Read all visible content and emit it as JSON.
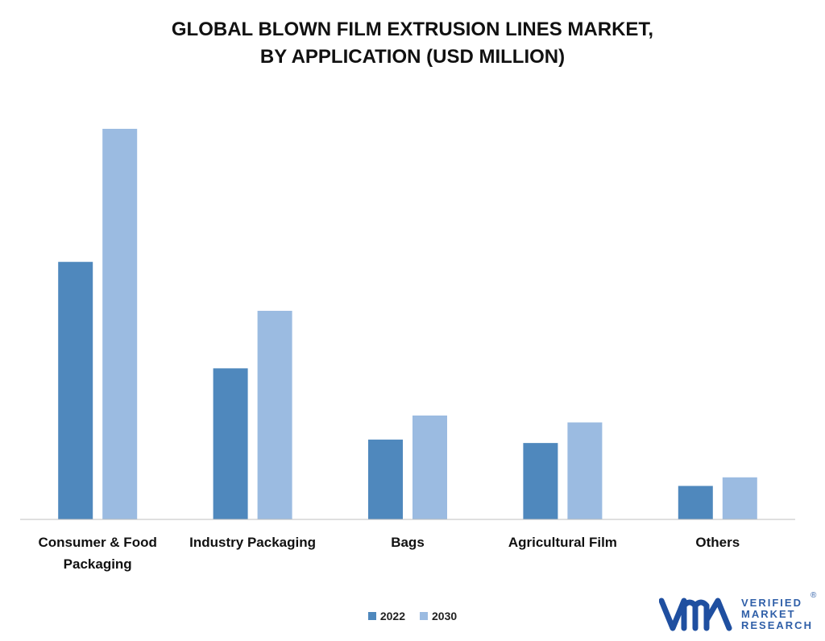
{
  "title_lines": [
    "GLOBAL BLOWN FILM EXTRUSION LINES MARKET,",
    "BY APPLICATION (USD MILLION)"
  ],
  "chart_data": {
    "type": "bar",
    "title": "GLOBAL BLOWN FILM EXTRUSION LINES MARKET, BY APPLICATION (USD MILLION)",
    "categories": [
      "Consumer & Food Packaging",
      "Industry Packaging",
      "Bags",
      "Agricultural Film",
      "Others"
    ],
    "category_label_lines": [
      [
        "Consumer & Food",
        "Packaging"
      ],
      [
        "Industry Packaging"
      ],
      [
        "Bags"
      ],
      [
        "Agricultural Film"
      ],
      [
        "Others"
      ]
    ],
    "series": [
      {
        "name": "2022",
        "color": "#4f88bd",
        "values": [
          300,
          176,
          93,
          89,
          39
        ]
      },
      {
        "name": "2030",
        "color": "#9bbbe1",
        "values": [
          455,
          243,
          121,
          113,
          49
        ]
      }
    ],
    "xlabel": "",
    "ylabel": "",
    "ylim": [
      0,
      500
    ],
    "grid": false,
    "legend_position": "bottom-center"
  },
  "logo": {
    "lines": [
      "VERIFIED",
      "MARKET",
      "RESEARCH"
    ],
    "registered": "®",
    "color": "#2f5fa8",
    "mark_color": "#1f4fa0"
  }
}
